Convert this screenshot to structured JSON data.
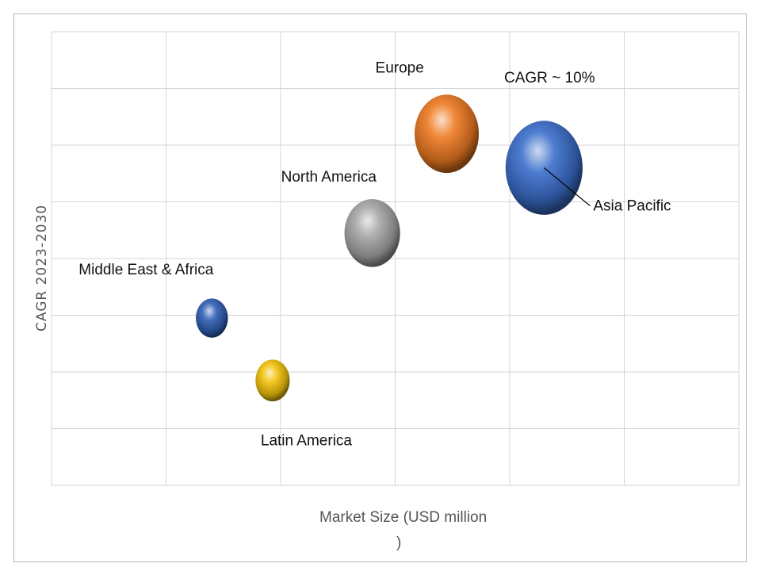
{
  "chart_data": {
    "type": "bubble",
    "title": "",
    "xlabel_line1": "Market Size (USD million",
    "xlabel_line2": ")",
    "ylabel": "CAGR 2023-2030",
    "grid": true,
    "annotation": "CAGR ~ 10%",
    "series": [
      {
        "name": "Middle East & Africa",
        "x": 1.4,
        "y": 2.95,
        "size": 0.75,
        "color": "#2f5fb4"
      },
      {
        "name": "Latin America",
        "x": 1.93,
        "y": 1.85,
        "size": 0.8,
        "color": "#f2c20a"
      },
      {
        "name": "North America",
        "x": 2.8,
        "y": 4.45,
        "size": 1.3,
        "color": "#a6a6a6"
      },
      {
        "name": "Europe",
        "x": 3.45,
        "y": 6.2,
        "size": 1.5,
        "color": "#ee7a22"
      },
      {
        "name": "Asia Pacific",
        "x": 4.3,
        "y": 5.6,
        "size": 1.8,
        "color": "#3a6fcc"
      }
    ]
  }
}
